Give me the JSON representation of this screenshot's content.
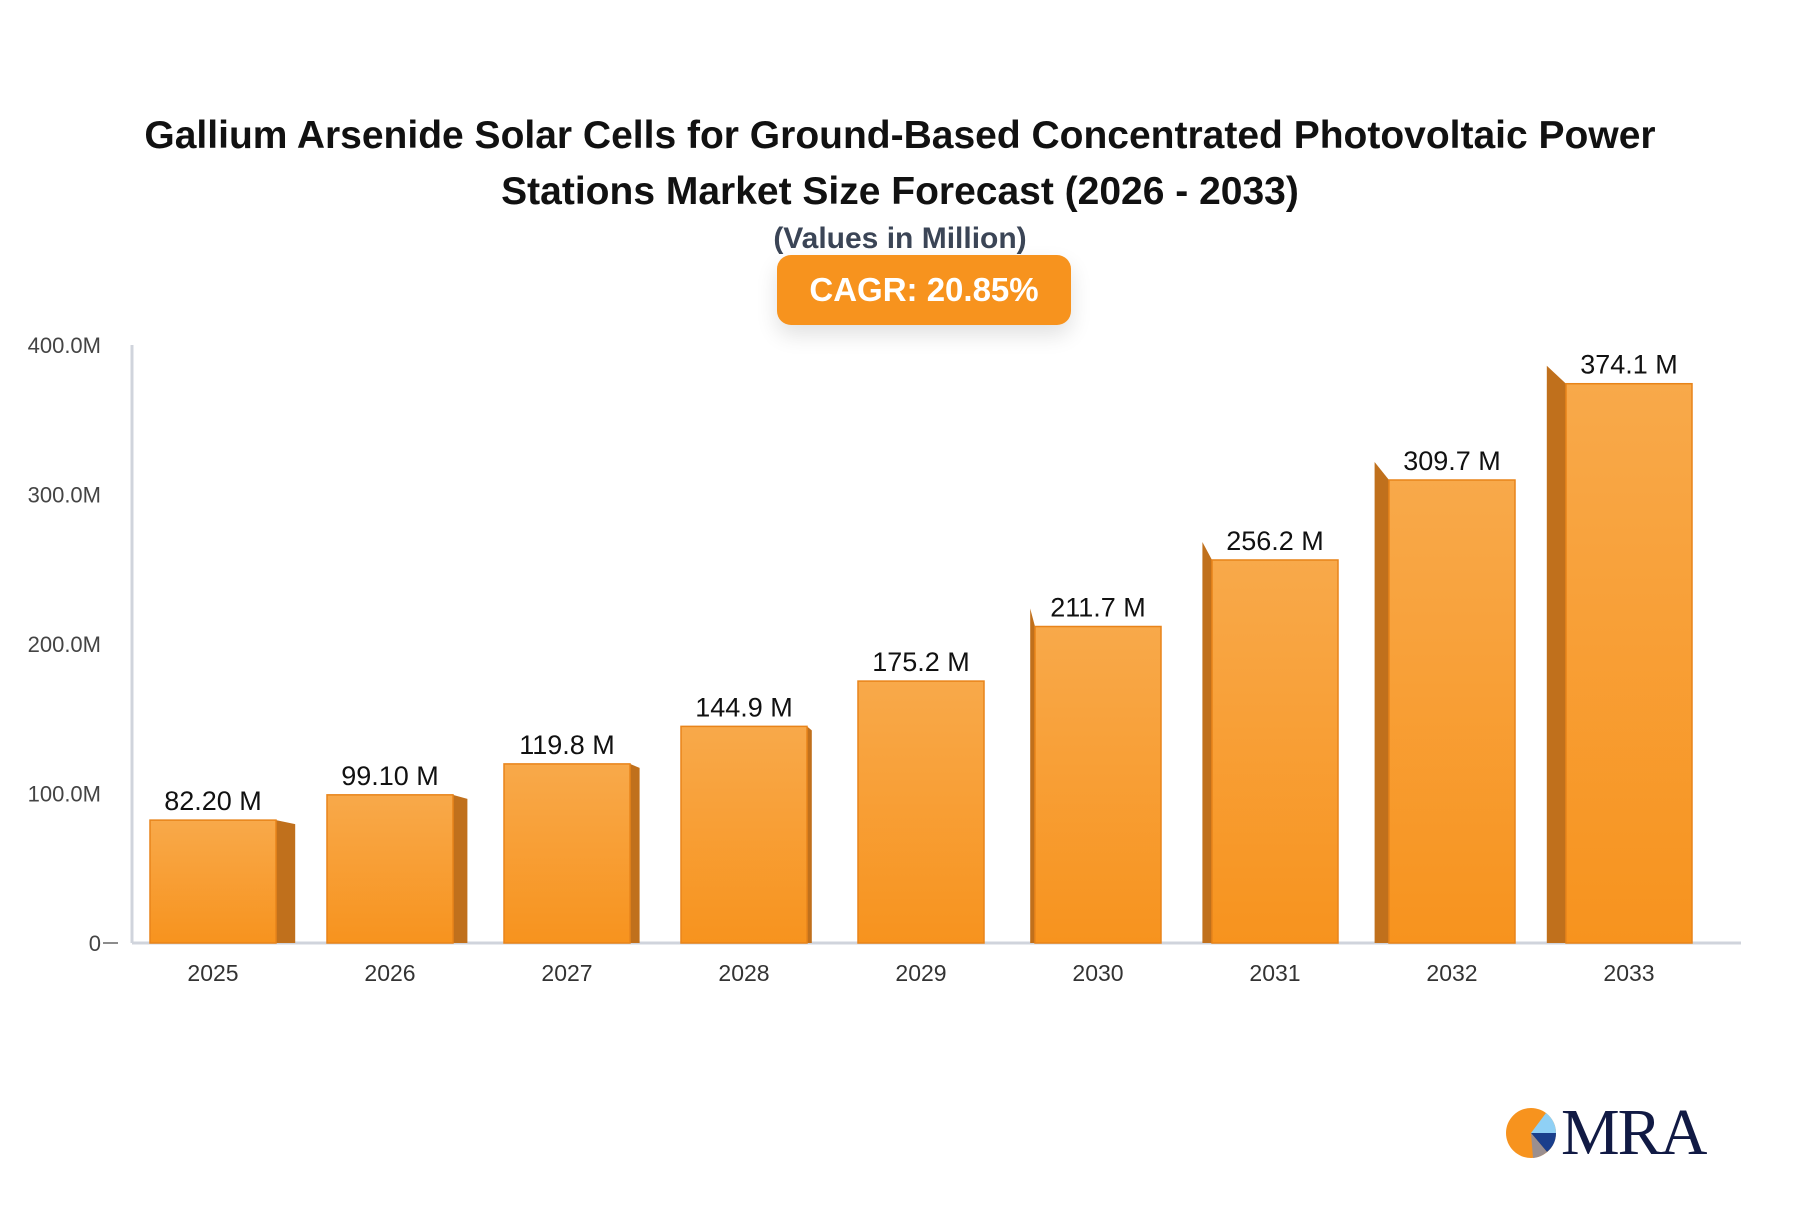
{
  "chart_data": {
    "type": "bar",
    "title": "Gallium Arsenide Solar Cells for Ground-Based Concentrated Photovoltaic Power Stations Market Size Forecast (2026 - 2033)",
    "subtitle": "(Values in Million)",
    "annotation": "CAGR: 20.85%",
    "categories": [
      "2025",
      "2026",
      "2027",
      "2028",
      "2029",
      "2030",
      "2031",
      "2032",
      "2033"
    ],
    "values": [
      82.2,
      99.1,
      119.8,
      144.9,
      175.2,
      211.7,
      256.2,
      309.7,
      374.1
    ],
    "data_labels": [
      "82.20 M",
      "99.10 M",
      "119.8 M",
      "144.9 M",
      "175.2 M",
      "211.7 M",
      "256.2 M",
      "309.7 M",
      "374.1 M"
    ],
    "yticks": [
      0,
      100,
      200,
      300,
      400
    ],
    "ytick_labels": [
      "0",
      "100.0M",
      "200.0M",
      "300.0M",
      "400.0M"
    ],
    "ylim": [
      0,
      400
    ],
    "xlabel": "",
    "ylabel": "",
    "grid": false,
    "colors": {
      "bar": "#f7931e",
      "bar_top": "#f8a94a",
      "bar_side": "#c0701c",
      "axis": "#d0d4dc",
      "badge": "#f7931e"
    }
  },
  "logo": {
    "text": "MRA"
  }
}
